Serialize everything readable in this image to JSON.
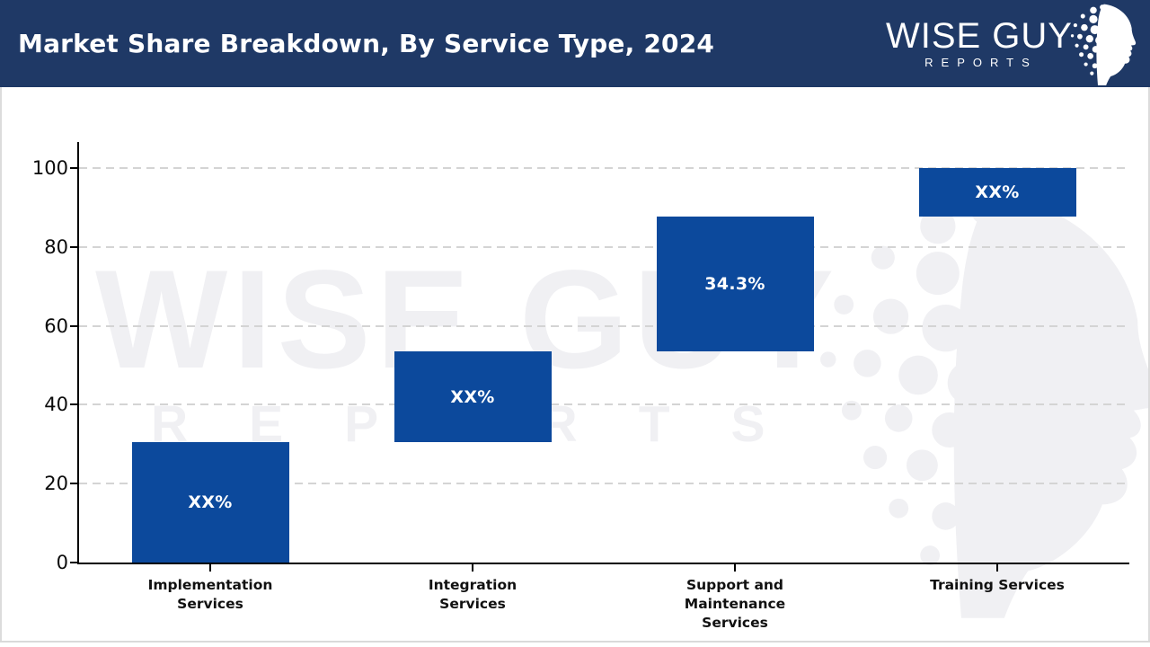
{
  "header": {
    "title": "Market Share Breakdown, By Service Type, 2024",
    "logo": {
      "line1": "WISE GUY",
      "line2": "REPORTS"
    }
  },
  "watermark": {
    "line1": "WISE GUY",
    "line2": "REPORTS"
  },
  "colors": {
    "header_bg": "#1f3966",
    "bar": "#0c499c",
    "bar_label": "#ffffff",
    "gridline": "#d4d4d4",
    "axis": "#000000",
    "watermark": "#f0f0f3"
  },
  "chart_data": {
    "type": "bar",
    "subtype": "waterfall",
    "title": "Market Share Breakdown, By Service Type, 2024",
    "xlabel": "",
    "ylabel": "",
    "ylim": [
      0,
      100
    ],
    "yticks": [
      0,
      20,
      40,
      60,
      80,
      100
    ],
    "grid": "horizontal dashed",
    "legend": "none",
    "bar_color": "#0c499c",
    "categories": [
      "Implementation Services",
      "Integration Services",
      "Support and Maintenance Services",
      "Training Services"
    ],
    "category_label_lines": [
      [
        "Implementation",
        "Services"
      ],
      [
        "Integration",
        "Services"
      ],
      [
        "Support and",
        "Maintenance",
        "Services"
      ],
      [
        "Training Services"
      ]
    ],
    "bars": [
      {
        "category": "Implementation Services",
        "start": 0,
        "end": 30.5,
        "value": 30.5,
        "display_label": "XX%"
      },
      {
        "category": "Integration Services",
        "start": 30.5,
        "end": 53.5,
        "value": 23.0,
        "display_label": "XX%"
      },
      {
        "category": "Support and Maintenance Services",
        "start": 53.5,
        "end": 87.8,
        "value": 34.3,
        "display_label": "34.3%"
      },
      {
        "category": "Training Services",
        "start": 87.8,
        "end": 100,
        "value": 12.2,
        "display_label": "XX%"
      }
    ]
  }
}
